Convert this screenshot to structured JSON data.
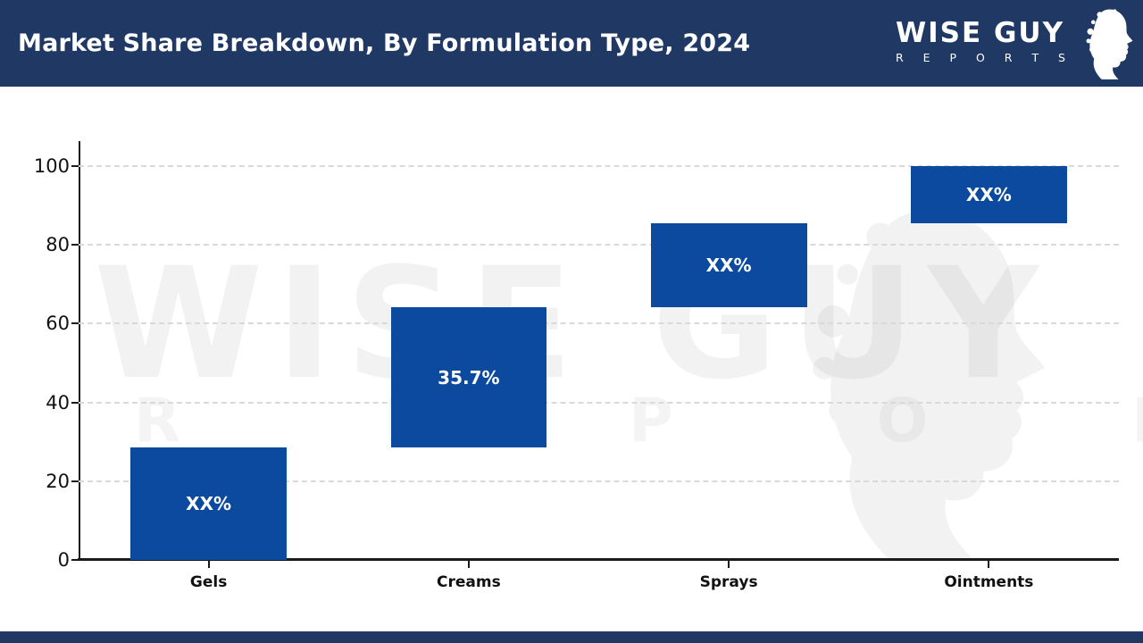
{
  "header": {
    "title": "Market Share Breakdown, By Formulation Type, 2024",
    "brand_line1": "WISE GUY",
    "brand_line2": "R E P O R T S"
  },
  "watermark": {
    "line1": "WISE GUY",
    "line2": "R E P O R T S"
  },
  "colors": {
    "header_bg": "#1f3864",
    "footer_bg": "#1f3864",
    "bar": "#0b4a9e",
    "bar_label": "#ffffff",
    "gridline": "#d9d9d9",
    "axis": "#1a1a1a"
  },
  "chart_data": {
    "type": "bar",
    "subtype": "floating-waterfall",
    "title": "Market Share Breakdown, By Formulation Type, 2024",
    "xlabel": "",
    "ylabel": "",
    "categories": [
      "Gels",
      "Creams",
      "Sprays",
      "Ointments"
    ],
    "series_points": [
      {
        "category": "Gels",
        "base": 0,
        "value": 28.5,
        "top": 28.5,
        "label": "XX%"
      },
      {
        "category": "Creams",
        "base": 28.5,
        "value": 35.7,
        "top": 64.2,
        "label": "35.7%"
      },
      {
        "category": "Sprays",
        "base": 64.2,
        "value": 21.3,
        "top": 85.5,
        "label": "XX%"
      },
      {
        "category": "Ointments",
        "base": 85.5,
        "value": 14.5,
        "top": 100,
        "label": "XX%"
      }
    ],
    "yticks": [
      0,
      20,
      40,
      60,
      80,
      100
    ],
    "ylim": [
      0,
      100
    ],
    "grid": "horizontal-dashed",
    "legend": "none"
  }
}
